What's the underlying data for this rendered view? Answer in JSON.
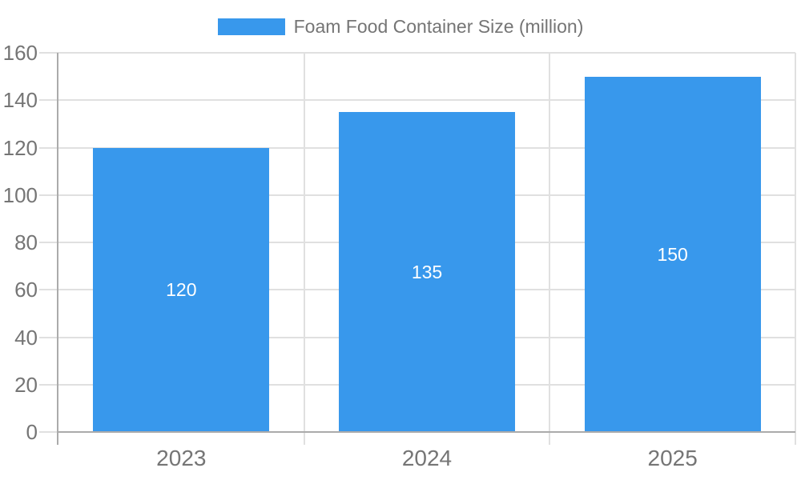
{
  "legend": {
    "label": "Foam Food Container Size (million)"
  },
  "chart_data": {
    "type": "bar",
    "title": "Foam Food Container Size (million)",
    "series": [
      {
        "name": "Foam Food Container Size (million)",
        "values": [
          120,
          135,
          150
        ]
      }
    ],
    "categories": [
      "2023",
      "2024",
      "2025"
    ],
    "data_labels": [
      "120",
      "135",
      "150"
    ],
    "y_tick_labels": [
      "0",
      "20",
      "40",
      "60",
      "80",
      "100",
      "120",
      "140",
      "160"
    ],
    "xlabel": "",
    "ylabel": "",
    "ylim": [
      0,
      160
    ],
    "ytick_step": 20,
    "grid": true,
    "legend_position": "top-center",
    "colors": {
      "bar": "#3898EC",
      "data_label": "#FFFFFF",
      "axis_text": "#757575",
      "axis_line": "#ABABAB",
      "gridline": "#E0E0E0"
    }
  }
}
